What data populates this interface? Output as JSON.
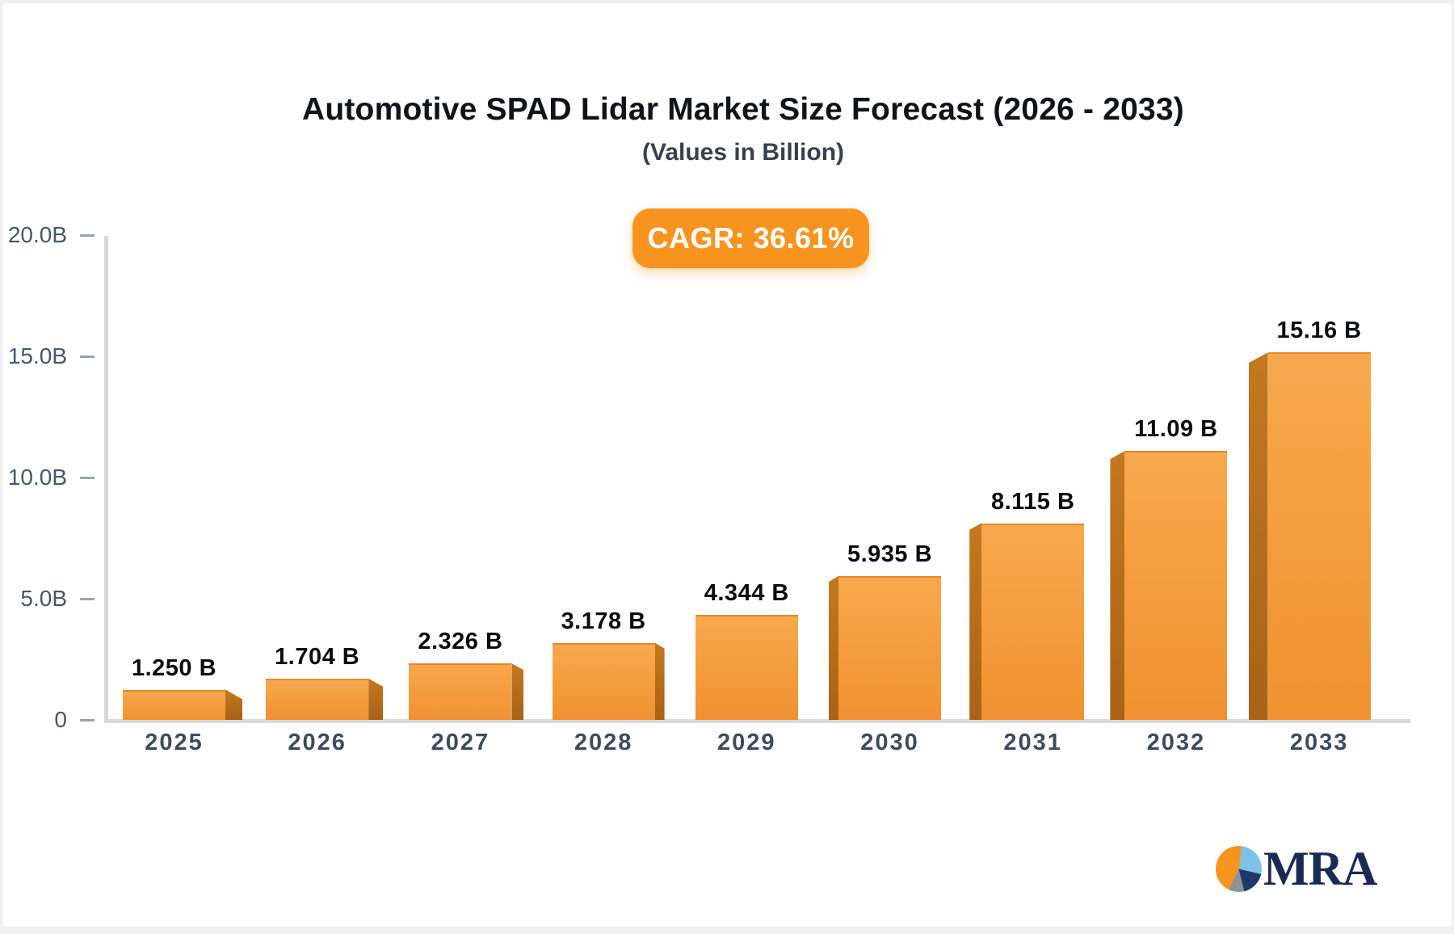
{
  "header": {
    "title": "Automotive SPAD Lidar Market Size Forecast (2026 - 2033)",
    "subtitle": "(Values in Billion)",
    "cagr_badge": "CAGR: 36.61%"
  },
  "chart_data": {
    "type": "bar",
    "categories": [
      "2025",
      "2026",
      "2027",
      "2028",
      "2029",
      "2030",
      "2031",
      "2032",
      "2033"
    ],
    "values": [
      1.25,
      1.704,
      2.326,
      3.178,
      4.344,
      5.935,
      8.115,
      11.09,
      15.16
    ],
    "value_labels": [
      "1.250 B",
      "1.704 B",
      "2.326 B",
      "3.178 B",
      "4.344 B",
      "5.935 B",
      "8.115 B",
      "11.09 B",
      "15.16 B"
    ],
    "title": "Automotive SPAD Lidar Market Size Forecast (2026 - 2033)",
    "xlabel": "",
    "ylabel": "",
    "unit": "Billion",
    "ylim": [
      0,
      20
    ],
    "yticks": [
      {
        "value": 20,
        "label": "20.0B"
      },
      {
        "value": 15,
        "label": "15.0B"
      },
      {
        "value": 10,
        "label": "10.0B"
      },
      {
        "value": 5,
        "label": "5.0B"
      },
      {
        "value": 0,
        "label": "0"
      }
    ],
    "grid": false,
    "legend": "none",
    "bar_color": "#F49A33",
    "bar_side_color": "#B56C1C",
    "cagr_percent": 36.61
  },
  "colors": {
    "accent_orange": "#F7941E",
    "axis_gray": "#D8D9DB",
    "tick_label": "#47566D",
    "year_label": "#3D4B61",
    "title_text": "#101418",
    "logo_navy": "#1B2A55",
    "logo_light_blue": "#7EC3E6",
    "logo_gray": "#8F9298"
  },
  "logo": {
    "text": "MRA",
    "pie_icon": "pie-chart-icon"
  }
}
